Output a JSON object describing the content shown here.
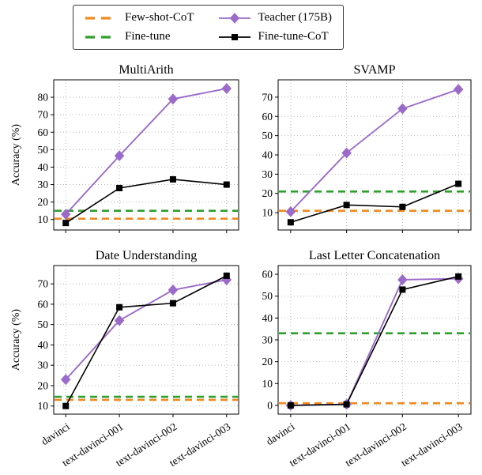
{
  "figure": {
    "background": "#ffffff",
    "ylabel": "Accuracy (%)"
  },
  "colors": {
    "few_shot_cot": "#ef8a1f",
    "fine_tune": "#2da02d",
    "teacher": "#9b6bc9",
    "fine_tune_cot": "#000000",
    "grid": "#b8b8b8",
    "axes": "#000000"
  },
  "legend": {
    "items": [
      {
        "label": "Few-shot-CoT",
        "color": "#ef8a1f",
        "marker": "dashed-line"
      },
      {
        "label": "Fine-tune",
        "color": "#2da02d",
        "marker": "dashed-line"
      },
      {
        "label": "Teacher (175B)",
        "color": "#9b6bc9",
        "marker": "diamond-line"
      },
      {
        "label": "Fine-tune-CoT",
        "color": "#000000",
        "marker": "square-line"
      }
    ]
  },
  "chart_data": [
    {
      "type": "line",
      "title": "MultiArith",
      "ylabel": "Accuracy (%)",
      "categories": [
        "davinci",
        "text-davinci-001",
        "text-davinci-002",
        "text-davinci-003"
      ],
      "yticks": [
        10,
        20,
        30,
        40,
        50,
        60,
        70,
        80
      ],
      "ylim": [
        4,
        90
      ],
      "grid": true,
      "legend_position": "figure-top",
      "hlines": [
        {
          "name": "Few-shot-CoT",
          "value": 10.5,
          "color": "#ef8a1f"
        },
        {
          "name": "Fine-tune",
          "value": 15,
          "color": "#2da02d"
        }
      ],
      "series": [
        {
          "name": "Teacher (175B)",
          "color": "#9b6bc9",
          "marker": "diamond",
          "values": [
            13,
            46.5,
            79,
            85
          ]
        },
        {
          "name": "Fine-tune-CoT",
          "color": "#000000",
          "marker": "square",
          "values": [
            8,
            28,
            33,
            30
          ]
        }
      ]
    },
    {
      "type": "line",
      "title": "SVAMP",
      "ylabel": "",
      "categories": [
        "davinci",
        "text-davinci-001",
        "text-davinci-002",
        "text-davinci-003"
      ],
      "yticks": [
        10,
        20,
        30,
        40,
        50,
        60,
        70
      ],
      "ylim": [
        1,
        79
      ],
      "grid": true,
      "legend_position": "figure-top",
      "hlines": [
        {
          "name": "Few-shot-CoT",
          "value": 11,
          "color": "#ef8a1f"
        },
        {
          "name": "Fine-tune",
          "value": 21,
          "color": "#2da02d"
        }
      ],
      "series": [
        {
          "name": "Teacher (175B)",
          "color": "#9b6bc9",
          "marker": "diamond",
          "values": [
            10.5,
            41,
            64,
            74
          ]
        },
        {
          "name": "Fine-tune-CoT",
          "color": "#000000",
          "marker": "square",
          "values": [
            5,
            14,
            13,
            25
          ]
        }
      ]
    },
    {
      "type": "line",
      "title": "Date Understanding",
      "ylabel": "Accuracy (%)",
      "categories": [
        "davinci",
        "text-davinci-001",
        "text-davinci-002",
        "text-davinci-003"
      ],
      "yticks": [
        10,
        20,
        30,
        40,
        50,
        60,
        70
      ],
      "ylim": [
        6,
        79
      ],
      "grid": true,
      "legend_position": "figure-top",
      "hlines": [
        {
          "name": "Few-shot-CoT",
          "value": 13,
          "color": "#ef8a1f"
        },
        {
          "name": "Fine-tune",
          "value": 14.5,
          "color": "#2da02d"
        }
      ],
      "series": [
        {
          "name": "Teacher (175B)",
          "color": "#9b6bc9",
          "marker": "diamond",
          "values": [
            23,
            52,
            67,
            72
          ]
        },
        {
          "name": "Fine-tune-CoT",
          "color": "#000000",
          "marker": "square",
          "values": [
            10,
            58.5,
            60.5,
            74
          ]
        }
      ]
    },
    {
      "type": "line",
      "title": "Last Letter Concatenation",
      "ylabel": "",
      "categories": [
        "davinci",
        "text-davinci-001",
        "text-davinci-002",
        "text-davinci-003"
      ],
      "yticks": [
        0,
        10,
        20,
        30,
        40,
        50,
        60
      ],
      "ylim": [
        -4,
        64
      ],
      "grid": true,
      "legend_position": "figure-top",
      "hlines": [
        {
          "name": "Few-shot-CoT",
          "value": 1,
          "color": "#ef8a1f"
        },
        {
          "name": "Fine-tune",
          "value": 33,
          "color": "#2da02d"
        }
      ],
      "series": [
        {
          "name": "Teacher (175B)",
          "color": "#9b6bc9",
          "marker": "diamond",
          "values": [
            0,
            0.5,
            57.5,
            58
          ]
        },
        {
          "name": "Fine-tune-CoT",
          "color": "#000000",
          "marker": "square",
          "values": [
            0,
            0.5,
            53,
            59
          ]
        }
      ]
    }
  ]
}
